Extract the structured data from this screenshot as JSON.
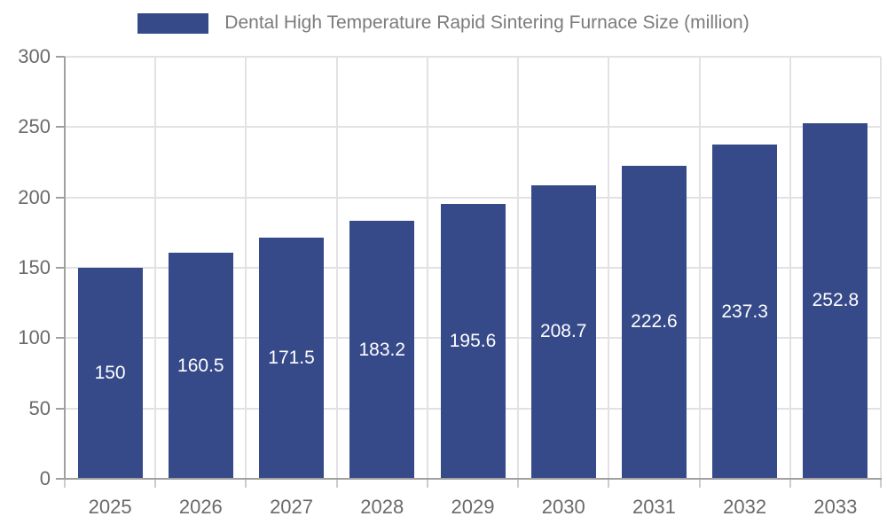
{
  "legend": {
    "label": "Dental High Temperature Rapid Sintering Furnace Size (million)"
  },
  "chart_data": {
    "type": "bar",
    "title": "Dental High Temperature Rapid Sintering Furnace Size (million)",
    "categories": [
      "2025",
      "2026",
      "2027",
      "2028",
      "2029",
      "2030",
      "2031",
      "2032",
      "2033"
    ],
    "series": [
      {
        "name": "Dental High Temperature Rapid Sintering Furnace Size (million)",
        "values": [
          150,
          160.5,
          171.5,
          183.2,
          195.6,
          208.7,
          222.6,
          237.3,
          252.8
        ]
      }
    ],
    "value_labels": [
      "150",
      "160.5",
      "171.5",
      "183.2",
      "195.6",
      "208.7",
      "222.6",
      "237.3",
      "252.8"
    ],
    "xlabel": "",
    "ylabel": "",
    "ylim": [
      0,
      300
    ],
    "yticks": [
      0,
      50,
      100,
      150,
      200,
      250,
      300
    ],
    "grid": true,
    "legend_position": "top",
    "colors": {
      "bar": "#364a89",
      "grid": "#e2e2e6",
      "axis": "#a0a0a0",
      "minor_tick": "#cccccc",
      "tick_label": "#6a6a6a",
      "title": "#7b7b7b",
      "bar_label": "#ffffff",
      "background": "#ffffff"
    }
  }
}
